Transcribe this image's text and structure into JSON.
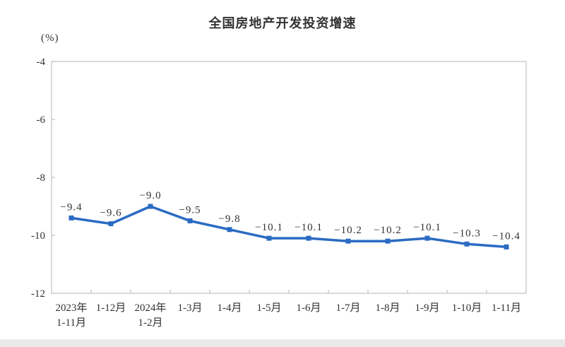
{
  "chart_data": {
    "type": "line",
    "title": "全国房地产开发投资增速",
    "ylabel": "(%)",
    "xlabel": "",
    "categories": [
      "2023年\n1-11月",
      "1-12月",
      "2024年\n1-2月",
      "1-3月",
      "1-4月",
      "1-5月",
      "1-6月",
      "1-7月",
      "1-8月",
      "1-9月",
      "1-10月",
      "1-11月"
    ],
    "values": [
      -9.4,
      -9.6,
      -9.0,
      -9.5,
      -9.8,
      -10.1,
      -10.1,
      -10.2,
      -10.2,
      -10.1,
      -10.3,
      -10.4
    ],
    "point_labels": [
      "−9.4",
      "−9.6",
      "−9.0",
      "−9.5",
      "−9.8",
      "−10.1",
      "−10.1",
      "−10.2",
      "−10.2",
      "−10.1",
      "−10.3",
      "−10.4"
    ],
    "ylim": [
      -12,
      -4
    ],
    "y_ticks": [
      -4,
      -6,
      -8,
      -10,
      -12
    ],
    "y_tick_labels": [
      "-4",
      "-6",
      "-8",
      "-10",
      "-12"
    ],
    "grid": false,
    "legend": "none",
    "line_color": "#2b6bc3",
    "marker": "square",
    "axis_color": "#c2c2c2",
    "text_color": "#333333"
  },
  "page": {
    "footer_strip_color": "#e9e9e9"
  }
}
